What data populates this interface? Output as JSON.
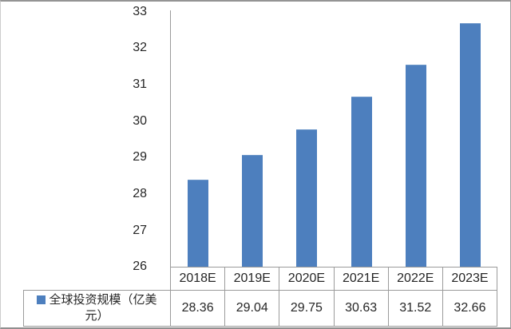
{
  "chart_data": {
    "type": "bar",
    "categories": [
      "2018E",
      "2019E",
      "2020E",
      "2021E",
      "2022E",
      "2023E"
    ],
    "series": [
      {
        "name": "全球投资规模（亿美元）",
        "values": [
          28.36,
          29.04,
          29.75,
          30.63,
          31.52,
          32.66
        ]
      }
    ],
    "title": "",
    "xlabel": "",
    "ylabel": "",
    "ylim": [
      26,
      33
    ],
    "yticks": [
      33,
      32,
      31,
      30,
      29,
      28,
      27,
      26
    ],
    "grid": false,
    "legend_position": "bottom-left-data-table",
    "bar_color": "#4d7fbe"
  },
  "legend": {
    "label": "全球投资规模（亿美元）",
    "marker_color": "#4d7fbe"
  },
  "table": {
    "categories": [
      "2018E",
      "2019E",
      "2020E",
      "2021E",
      "2022E",
      "2023E"
    ],
    "values": [
      "28.36",
      "29.04",
      "29.75",
      "30.63",
      "31.52",
      "32.66"
    ]
  },
  "colors": {
    "bar": "#4d7fbe",
    "border": "#9b9b9b",
    "text": "#262626"
  }
}
